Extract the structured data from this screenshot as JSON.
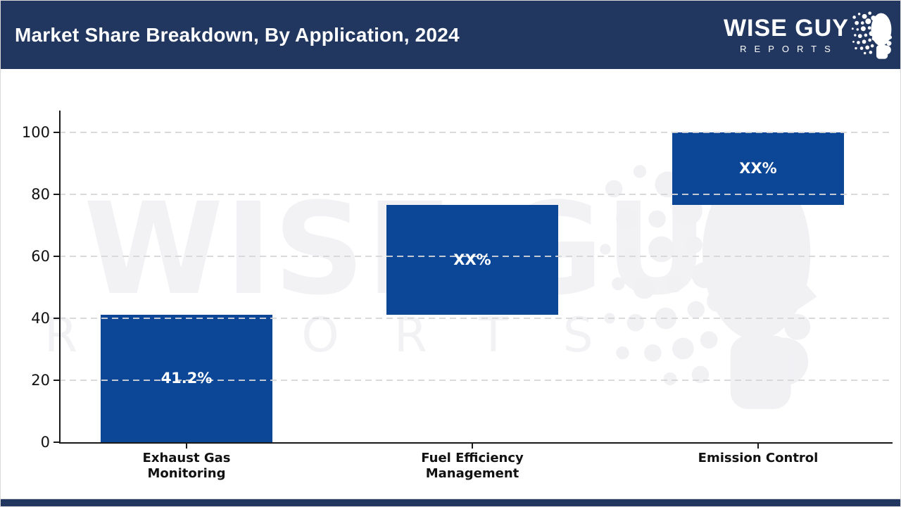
{
  "header": {
    "title": "Market Share Breakdown, By Application, 2024",
    "logo": {
      "line1": "WISE GUY",
      "line2": "REPORTS"
    }
  },
  "watermark": {
    "line1": "WISE GUY",
    "line2": "REPORTS"
  },
  "chart_data": {
    "type": "bar",
    "subtype": "waterfall",
    "title": "Market Share Breakdown, By Application, 2024",
    "unit": "%",
    "categories": [
      "Exhaust Gas\nMonitoring",
      "Fuel Efficiency\nManagement",
      "Emission Control"
    ],
    "series": [
      {
        "name": "Market Share, By Application, 2024",
        "segments": [
          {
            "category": "Exhaust Gas Monitoring",
            "start": 0,
            "end": 41.2,
            "label": "41.2%"
          },
          {
            "category": "Fuel Efficiency Management",
            "start": 41.2,
            "end": 76.7,
            "label": "XX%"
          },
          {
            "category": "Emission Control",
            "start": 76.7,
            "end": 100,
            "label": "XX%"
          }
        ]
      }
    ],
    "xlabel": "",
    "ylabel": "",
    "ylim": [
      0,
      100
    ],
    "yticks": [
      0,
      20,
      40,
      60,
      80,
      100
    ],
    "grid": "horizontal-dashed",
    "legend": "none"
  },
  "colors": {
    "header_bg": "#213760",
    "footer_bg": "#213760",
    "title_text": "#ffffff",
    "bar": "#0b4697",
    "bar_label": "#ffffff",
    "grid": "#d8d8d8",
    "axis": "#1a1a1a",
    "watermark": "#f2f2f5"
  }
}
